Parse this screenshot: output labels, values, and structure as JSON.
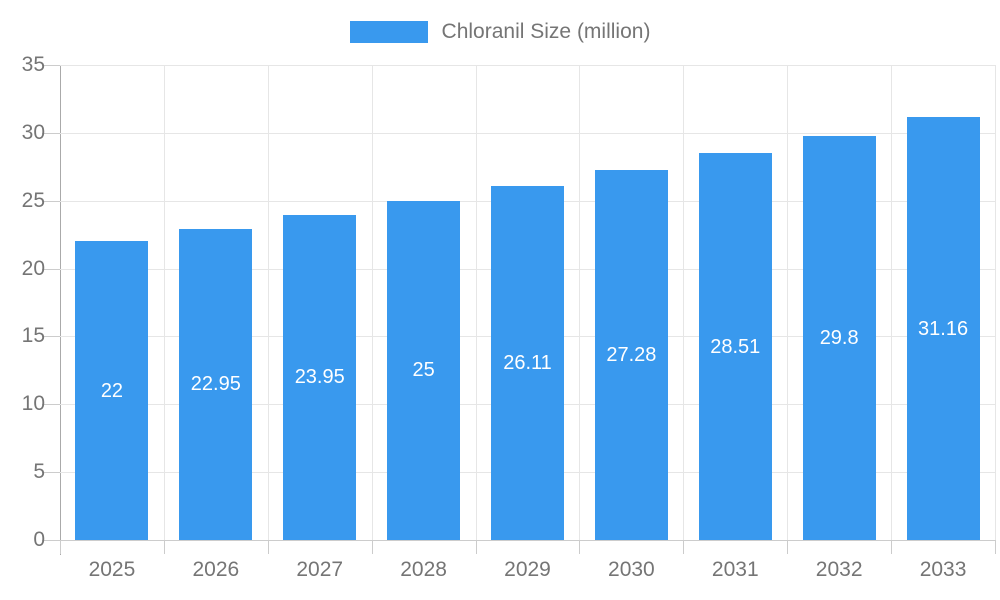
{
  "legend": {
    "label": "Chloranil Size (million)"
  },
  "colors": {
    "bar": "#3999ee",
    "grid": "#e6e6e6",
    "baseline": "#cccccc",
    "axis_line": "#aaaaaa",
    "tick": "#cccccc",
    "axis_text": "#757575",
    "bar_label_text": "#ffffff",
    "background": "#ffffff"
  },
  "chart_data": {
    "type": "bar",
    "title": "Chloranil Size (million)",
    "categories": [
      "2025",
      "2026",
      "2027",
      "2028",
      "2029",
      "2030",
      "2031",
      "2032",
      "2033"
    ],
    "values": [
      22,
      22.95,
      23.95,
      25,
      26.11,
      27.28,
      28.51,
      29.8,
      31.16
    ],
    "value_labels": [
      "22",
      "22.95",
      "23.95",
      "25",
      "26.11",
      "27.28",
      "28.51",
      "29.8",
      "31.16"
    ],
    "xlabel": "",
    "ylabel": "",
    "ylim": [
      0,
      35
    ],
    "yticks": [
      0,
      5,
      10,
      15,
      20,
      25,
      30,
      35
    ],
    "grid": true,
    "legend_position": "top-center",
    "bar_label_position": "inside-middle"
  }
}
